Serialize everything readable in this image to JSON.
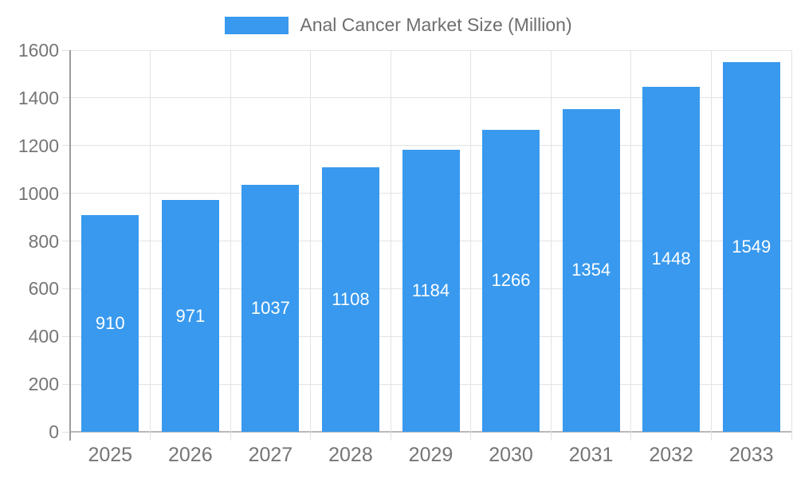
{
  "chart_data": {
    "type": "bar",
    "title": "Anal Cancer Market Size (Million)",
    "categories": [
      "2025",
      "2026",
      "2027",
      "2028",
      "2029",
      "2030",
      "2031",
      "2032",
      "2033"
    ],
    "series": [
      {
        "name": "Anal Cancer Market Size (Million)",
        "values": [
          910,
          971,
          1037,
          1108,
          1184,
          1266,
          1354,
          1448,
          1549
        ]
      }
    ],
    "values": [
      910,
      971,
      1037,
      1108,
      1184,
      1266,
      1354,
      1448,
      1549
    ],
    "xlabel": "",
    "ylabel": "",
    "ylim": [
      0,
      1600
    ],
    "ytick_step": 200,
    "yticks": [
      0,
      200,
      400,
      600,
      800,
      1000,
      1200,
      1400,
      1600
    ],
    "grid": true,
    "legend_position": "top",
    "value_labels": "inside-center"
  },
  "colors": {
    "bar": "#3899ee",
    "value_label": "#ffffff",
    "axis_label": "#757575",
    "legend_text": "#6e6e6e",
    "gridline": "#e3e3e3",
    "axis_line": "#9c9c9c",
    "baseline": "#b9b9b9",
    "tick": "#e0e0e0",
    "background": "#ffffff"
  }
}
